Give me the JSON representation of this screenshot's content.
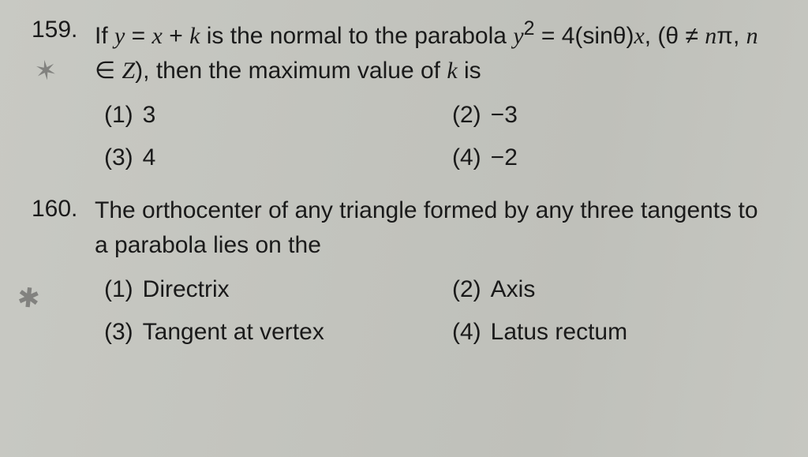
{
  "questions": [
    {
      "number": "159.",
      "text_html": "If <span class='math'>y</span> = <span class='math'>x</span> + <span class='math'>k</span> is the normal to the parabola <span class='math'>y</span><sup>2</sup> = 4(sinθ)<span class='math'>x</span>, (θ ≠ <span class='math'>n</span>π, <span class='math'>n</span> ∈ <span class='math'>Z</span>), then the maximum value of <span class='math'>k</span> is",
      "options": [
        {
          "n": "(1)",
          "v": "3"
        },
        {
          "n": "(2)",
          "v": "−3"
        },
        {
          "n": "(3)",
          "v": "4"
        },
        {
          "n": "(4)",
          "v": "−2"
        }
      ]
    },
    {
      "number": "160.",
      "text_html": "The orthocenter of any triangle formed by any three tangents to a parabola lies on the",
      "options": [
        {
          "n": "(1)",
          "v": "Directrix"
        },
        {
          "n": "(2)",
          "v": "Axis"
        },
        {
          "n": "(3)",
          "v": "Tangent at vertex"
        },
        {
          "n": "(4)",
          "v": "Latus rectum"
        }
      ]
    }
  ]
}
